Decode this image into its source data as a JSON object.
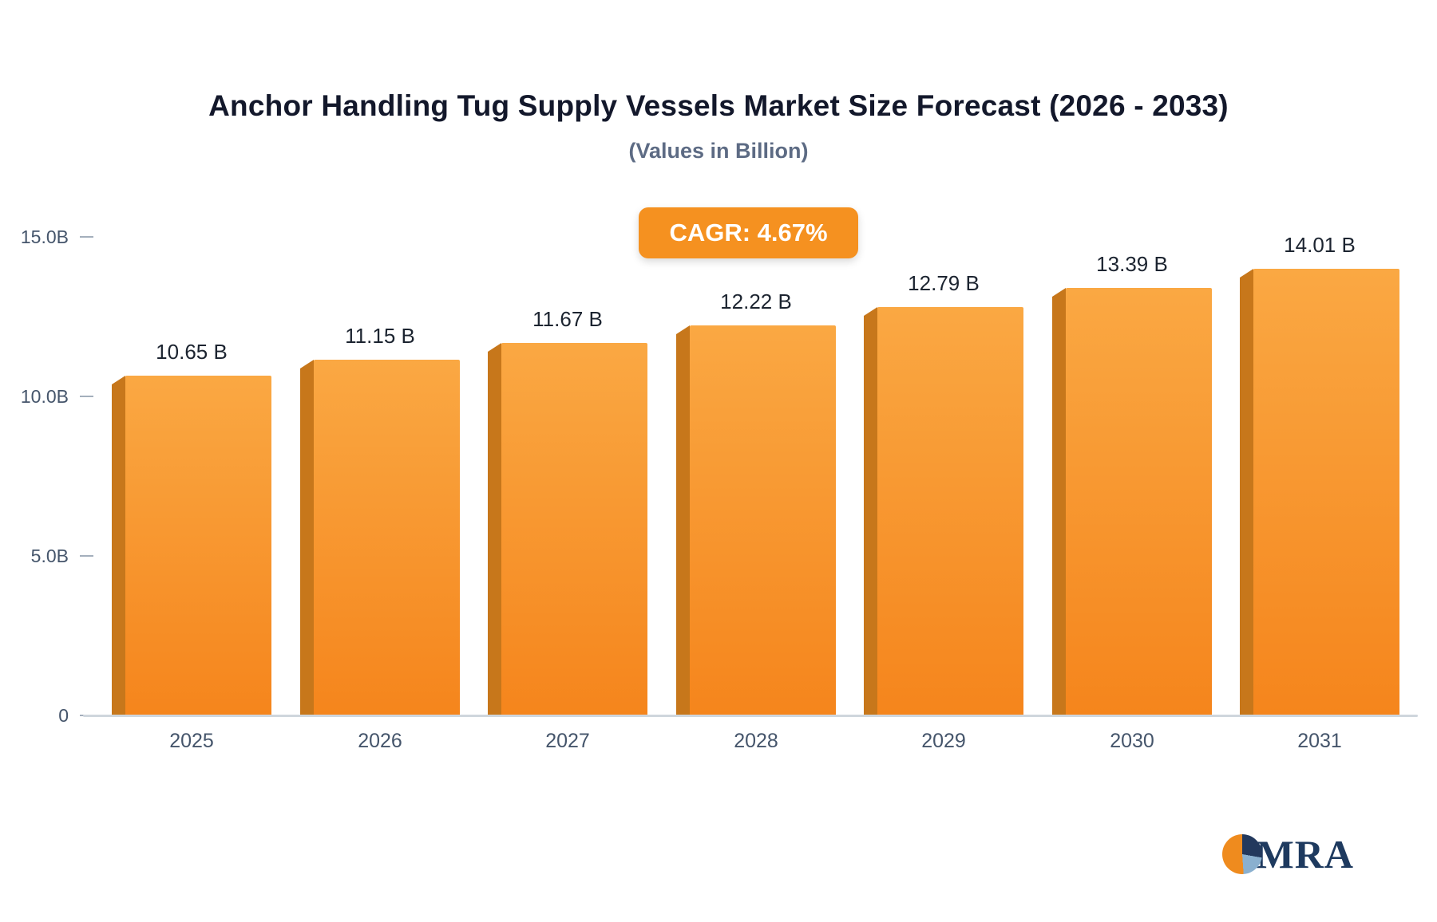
{
  "badge": {
    "text": "CAGR: 4.67%",
    "color": "#F59120"
  },
  "chart_data": {
    "type": "bar",
    "title": "Anchor Handling Tug Supply Vessels Market Size Forecast (2026 - 2033)",
    "subtitle": "(Values in Billion)",
    "categories": [
      "2025",
      "2026",
      "2027",
      "2028",
      "2029",
      "2030",
      "2031"
    ],
    "values": [
      10.65,
      11.15,
      11.67,
      12.22,
      12.79,
      13.39,
      14.01
    ],
    "value_labels": [
      "10.65 B",
      "11.15 B",
      "11.67 B",
      "12.22 B",
      "12.79 B",
      "13.39 B",
      "14.01 B"
    ],
    "xlabel": "",
    "ylabel": "",
    "ylim": [
      0,
      15
    ],
    "yticks": [
      {
        "value": 15,
        "label": "15.0B"
      },
      {
        "value": 10,
        "label": "10.0B"
      },
      {
        "value": 5,
        "label": "5.0B"
      },
      {
        "value": 0,
        "label": "0"
      }
    ],
    "grid": false,
    "legend": false,
    "bar_color_top": "#FAA843",
    "bar_color_bottom": "#F5851C",
    "bar_side_color": "#C7771B"
  },
  "logo": {
    "text": "MRA"
  }
}
